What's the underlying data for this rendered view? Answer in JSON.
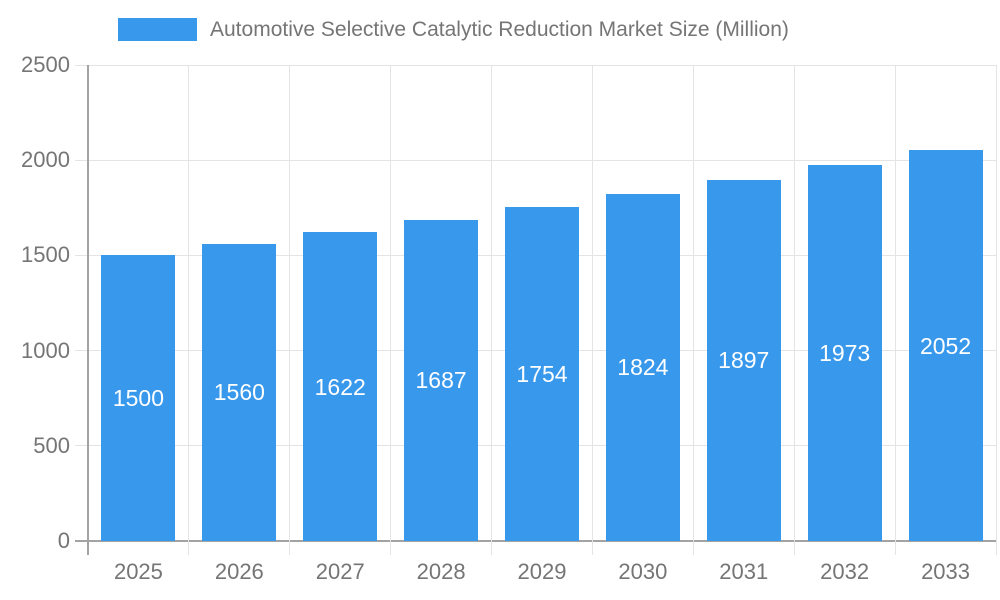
{
  "chart_data": {
    "type": "bar",
    "title": "Automotive Selective Catalytic Reduction Market Size (Million)",
    "categories": [
      "2025",
      "2026",
      "2027",
      "2028",
      "2029",
      "2030",
      "2031",
      "2032",
      "2033"
    ],
    "values": [
      1500,
      1560,
      1622,
      1687,
      1754,
      1824,
      1897,
      1973,
      2052
    ],
    "xlabel": "",
    "ylabel": "",
    "ylim": [
      0,
      2500
    ],
    "y_ticks": [
      0,
      500,
      1000,
      1500,
      2000,
      2500
    ],
    "grid": true,
    "legend_position": "top",
    "bar_color": "#3898EC",
    "value_label_color": "#FFFFFF",
    "text_color": "#757575",
    "gridline_color": "#E4E4E4",
    "axis_color": "#A3A3A3"
  }
}
